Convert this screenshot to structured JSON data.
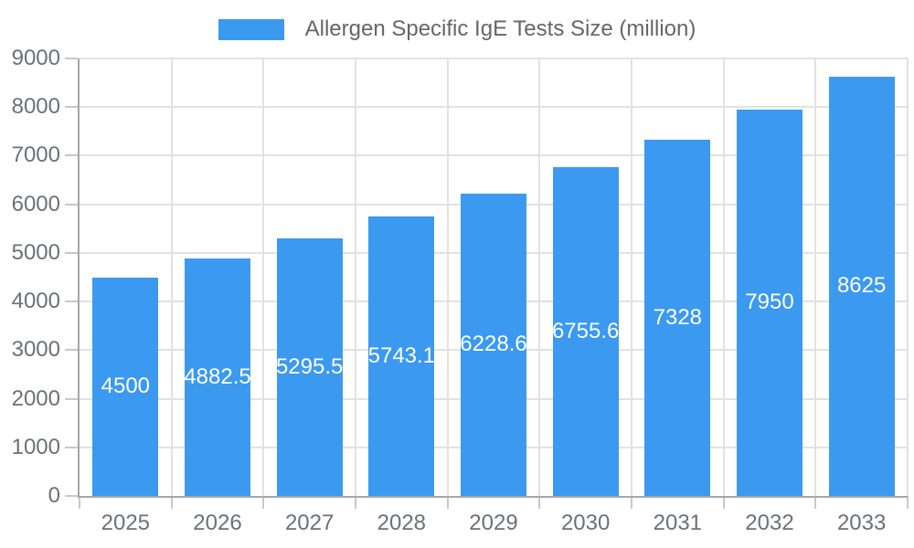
{
  "chart_data": {
    "type": "bar",
    "title": "Allergen Specific IgE Tests Size (million)",
    "categories": [
      "2025",
      "2026",
      "2027",
      "2028",
      "2029",
      "2030",
      "2031",
      "2032",
      "2033"
    ],
    "values": [
      4500,
      4882.5,
      5295.5,
      5743.1,
      6228.6,
      6755.6,
      7328,
      7950,
      8625
    ],
    "xlabel": "",
    "ylabel": "",
    "ylim": [
      0,
      9000
    ],
    "ytick_step": 1000,
    "grid": true,
    "legend_position": "top-center",
    "value_labels_position": "inside-center",
    "colors": {
      "bar": "#3b99f0",
      "value_label": "#ffffff",
      "axis_label": "#6e7079",
      "legend_text": "#666666",
      "axis_line": "#a7a7a7",
      "tick": "#c8c8c8",
      "gridline": "#e2e2e2",
      "background": "#ffffff"
    }
  }
}
